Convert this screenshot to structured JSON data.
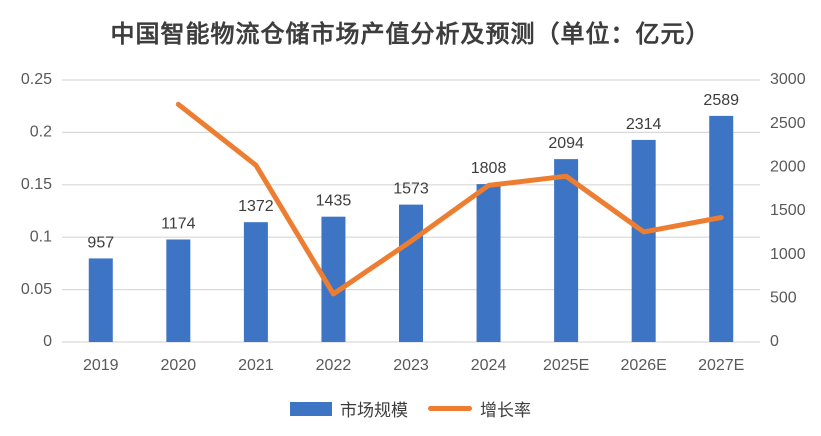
{
  "chart_data": {
    "type": "bar",
    "combo": "bar+line",
    "title": "中国智能物流仓储市场产值分析及预测（单位：亿元）",
    "categories": [
      "2019",
      "2020",
      "2021",
      "2022",
      "2023",
      "2024",
      "2025E",
      "2026E",
      "2027E"
    ],
    "series": [
      {
        "name": "市场规模",
        "type": "bar",
        "axis": "right",
        "values": [
          957,
          1174,
          1372,
          1435,
          1573,
          1808,
          2094,
          2314,
          2589
        ],
        "data_labels": [
          "957",
          "1174",
          "1372",
          "1435",
          "1573",
          "1808",
          "2094",
          "2314",
          "2589"
        ],
        "color": "#3d74c4"
      },
      {
        "name": "增长率",
        "type": "line",
        "axis": "left",
        "values": [
          null,
          0.2268,
          0.1687,
          0.0459,
          0.0962,
          0.1494,
          0.1582,
          0.1051,
          0.1188
        ],
        "color": "#ed7d31"
      }
    ],
    "left_axis": {
      "min": 0,
      "max": 0.25,
      "tick_values": [
        0,
        0.05,
        0.1,
        0.15,
        0.2,
        0.25
      ],
      "tick_labels": [
        "0",
        "0.05",
        "0.1",
        "0.15",
        "0.2",
        "0.25"
      ]
    },
    "right_axis": {
      "min": 0,
      "max": 3000,
      "tick_values": [
        0,
        500,
        1000,
        1500,
        2000,
        2500,
        3000
      ],
      "tick_labels": [
        "0",
        "500",
        "1000",
        "1500",
        "2000",
        "2500",
        "3000"
      ]
    },
    "grid": true,
    "gridline_color": "#d9d9d9",
    "legend_position": "bottom"
  }
}
